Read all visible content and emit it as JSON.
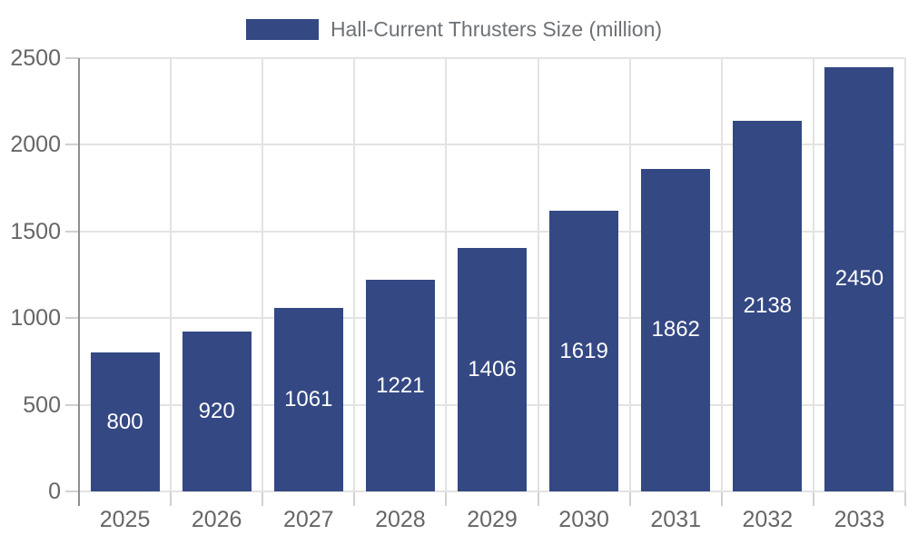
{
  "chart_data": {
    "type": "bar",
    "title": "Hall-Current Thrusters Size (million)",
    "categories": [
      "2025",
      "2026",
      "2027",
      "2028",
      "2029",
      "2030",
      "2031",
      "2032",
      "2033"
    ],
    "values": [
      800,
      920,
      1061,
      1221,
      1406,
      1619,
      1862,
      2138,
      2450
    ],
    "series": [
      {
        "name": "Hall-Current Thrusters Size (million)",
        "values": [
          800,
          920,
          1061,
          1221,
          1406,
          1619,
          1862,
          2138,
          2450
        ]
      }
    ],
    "xlabel": "",
    "ylabel": "",
    "ylim": [
      0,
      2500
    ],
    "yticks": [
      0,
      500,
      1000,
      1500,
      2000,
      2500
    ],
    "grid": true,
    "legend_position": "top",
    "value_labels": "inside-center"
  },
  "legend": {
    "label": "Hall-Current Thrusters Size (million)"
  },
  "colors": {
    "bar": "#344883",
    "grid": "#e3e3e3",
    "axis_line": "#8f8f8f",
    "tick": "#d0d0d0",
    "text": "#666666",
    "legend_text": "#6e7276",
    "value_label": "#ffffff",
    "background": "#ffffff"
  }
}
